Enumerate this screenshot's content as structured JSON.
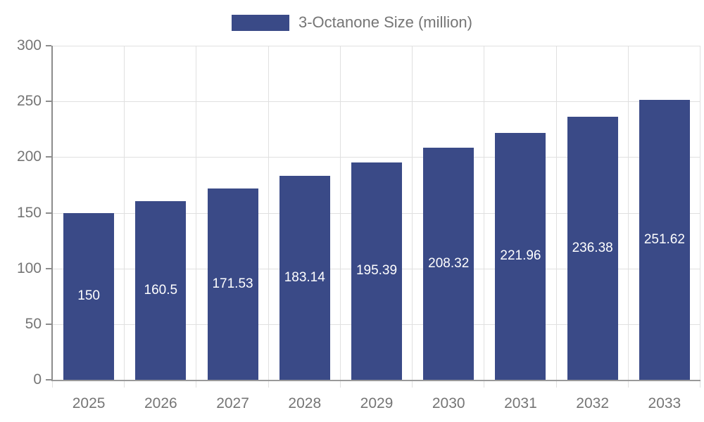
{
  "chart_data": {
    "type": "bar",
    "title": "",
    "legend": [
      "3-Octanone Size (million)"
    ],
    "legend_position": "top-center",
    "categories": [
      "2025",
      "2026",
      "2027",
      "2028",
      "2029",
      "2030",
      "2031",
      "2032",
      "2033"
    ],
    "values": [
      150,
      160.5,
      171.53,
      183.14,
      195.39,
      208.32,
      221.96,
      236.38,
      251.62
    ],
    "value_labels": [
      "150",
      "160.5",
      "171.53",
      "183.14",
      "195.39",
      "208.32",
      "221.96",
      "236.38",
      "251.62"
    ],
    "value_label_position": "inside-center",
    "xlabel": "",
    "ylabel": "",
    "ylim": [
      0,
      300
    ],
    "yticks": [
      "0",
      "50",
      "100",
      "150",
      "200",
      "250",
      "300"
    ],
    "grid": true,
    "colors": {
      "bar": "#3A4A87",
      "bar_label": "#FFFFFF",
      "axis_text": "#757575",
      "grid_line": "#E0E0E0",
      "y_axis_line": "#8C8C8C",
      "x_axis_line": "#9A9A9A"
    }
  }
}
